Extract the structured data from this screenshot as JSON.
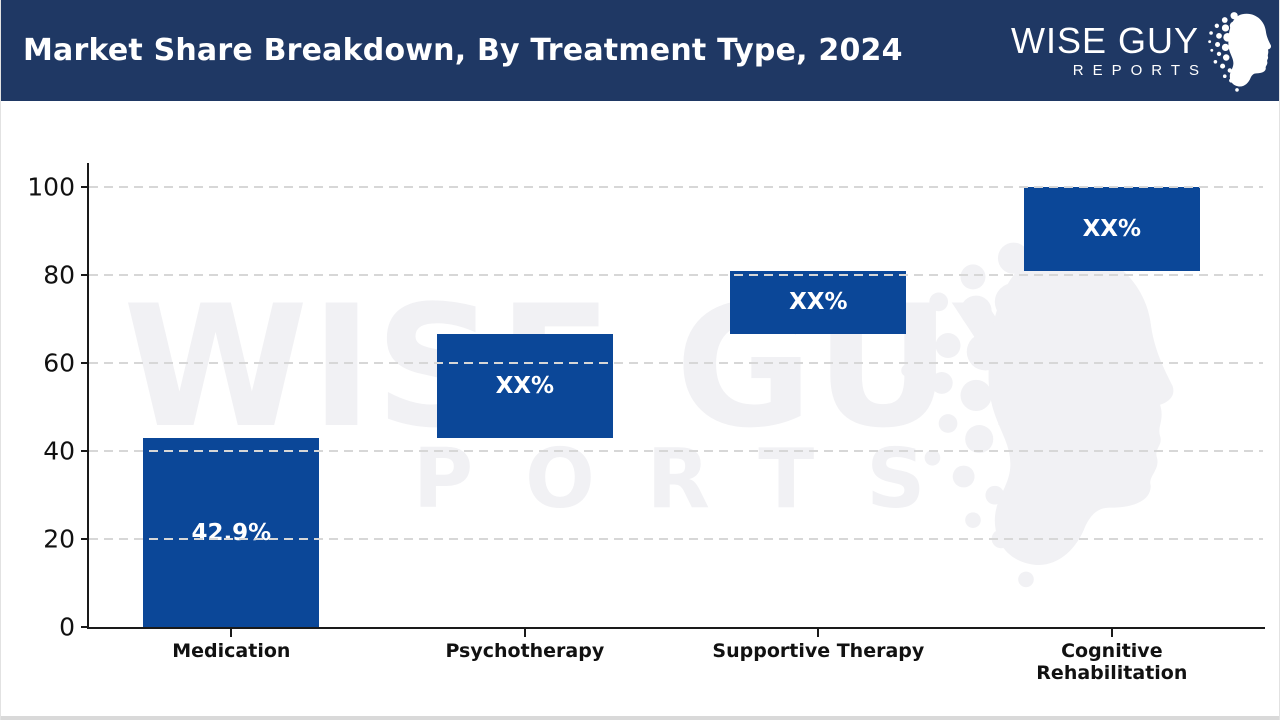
{
  "header": {
    "title": "Market Share Breakdown, By Treatment Type, 2024",
    "logo": {
      "brand": "WISE GUY",
      "sub": "REPORTS"
    }
  },
  "watermark": {
    "line1": "WISE GUY",
    "line2": "PORTS"
  },
  "colors": {
    "header_bg": "#1f3864",
    "bar_blue": "#0b4798",
    "grid_gray": "#d7d7d7",
    "axis_black": "#1a1a1a",
    "watermark_gray": "#f1f1f4",
    "bottom_strip": "#d9d9d9"
  },
  "chart_data": {
    "type": "bar",
    "subtype": "waterfall-stacked-percent",
    "title": "Market Share Breakdown, By Treatment Type, 2024",
    "categories": [
      "Medication",
      "Psychotherapy",
      "Supportive Therapy",
      "Cognitive\nRehabilitation"
    ],
    "segments": [
      {
        "category": "Medication",
        "start": 0,
        "end": 42.9,
        "label": "42.9%"
      },
      {
        "category": "Psychotherapy",
        "start": 42.9,
        "end": 66.7,
        "label": "XX%"
      },
      {
        "category": "Supportive Therapy",
        "start": 66.7,
        "end": 81.0,
        "label": "XX%"
      },
      {
        "category": "Cognitive Rehabilitation",
        "start": 81.0,
        "end": 100,
        "label": "XX%"
      }
    ],
    "xlabel": "",
    "ylabel": "",
    "ylim": [
      0,
      100
    ],
    "yticks": [
      0,
      20,
      40,
      60,
      80,
      100
    ],
    "grid": "horizontal-dashed",
    "legend": "none",
    "bar_color": "#0b4798",
    "bar_label_color": "#ffffff"
  }
}
